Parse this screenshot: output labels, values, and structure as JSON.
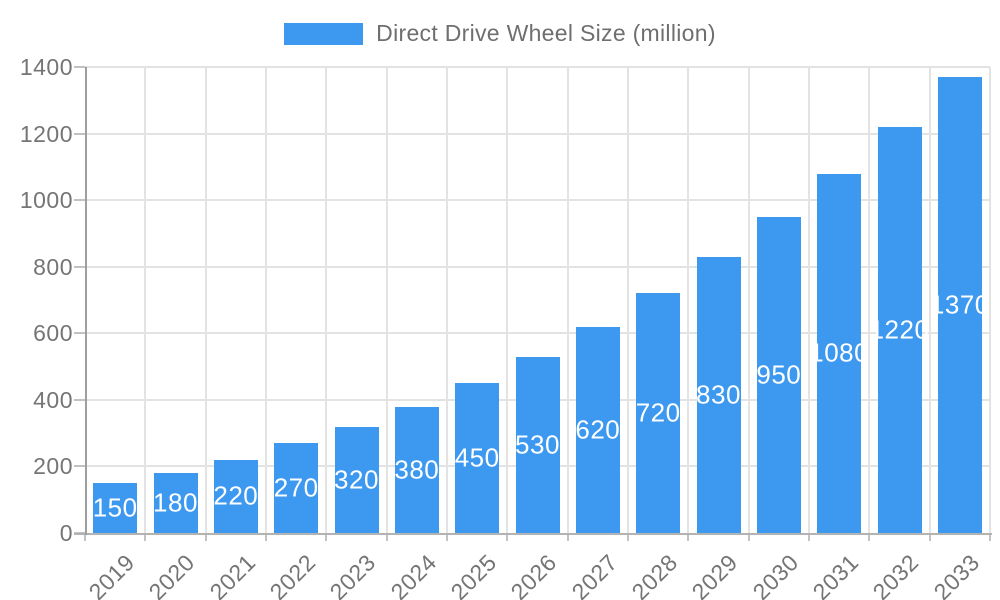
{
  "legend": {
    "label": "Direct Drive Wheel Size (million)",
    "swatch_color": "#3D99F0"
  },
  "chart_data": {
    "type": "bar",
    "title": "",
    "xlabel": "",
    "ylabel": "",
    "categories": [
      "2019",
      "2020",
      "2021",
      "2022",
      "2023",
      "2024",
      "2025",
      "2026",
      "2027",
      "2028",
      "2029",
      "2030",
      "2031",
      "2032",
      "2033"
    ],
    "series": [
      {
        "name": "Direct Drive Wheel Size (million)",
        "values": [
          150,
          180,
          220,
          270,
          320,
          380,
          450,
          530,
          620,
          720,
          830,
          950,
          1080,
          1220,
          1370
        ]
      }
    ],
    "ylim": [
      0,
      1400
    ],
    "yticks": [
      0,
      200,
      400,
      600,
      800,
      1000,
      1200,
      1400
    ],
    "grid": true,
    "legend_position": "top-center",
    "bar_color": "#3D99F0",
    "bar_label_color": "#ffffff",
    "axis_label_color": "#757575",
    "gridline_color": "#e3e3e3",
    "yaxis_line_color": "#9e9e9e",
    "xaxis_line_color": "#b3b3b3",
    "tick_color": "#c2c2c2"
  }
}
